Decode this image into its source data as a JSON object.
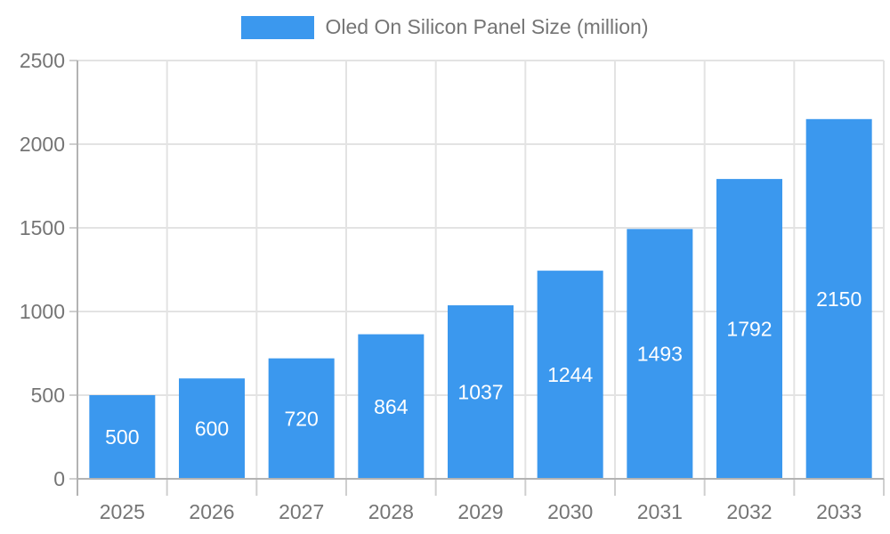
{
  "chart_data": {
    "type": "bar",
    "title": "Oled On Silicon Panel Size (million)",
    "categories": [
      "2025",
      "2026",
      "2027",
      "2028",
      "2029",
      "2030",
      "2031",
      "2032",
      "2033"
    ],
    "values": [
      500,
      600,
      720,
      864,
      1037,
      1244,
      1493,
      1792,
      2150
    ],
    "xlabel": "",
    "ylabel": "",
    "ylim": [
      0,
      2500
    ],
    "yticks": [
      0,
      500,
      1000,
      1500,
      2000,
      2500
    ],
    "grid": "on",
    "legend_position": "top-center",
    "bar_label_color": "#ffffff",
    "colors": {
      "bar": "#3b98ee",
      "axis_text": "#757575",
      "gridline": "#e3e3e3",
      "axis_line": "#b3b3b3",
      "tick": "#cfcfcf",
      "background": "#ffffff"
    }
  }
}
